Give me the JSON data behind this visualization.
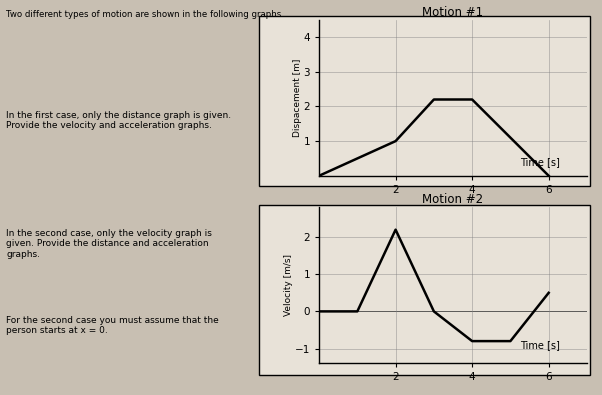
{
  "bg_color": "#c8bfb2",
  "graph_bg": "#e8e2d8",
  "header_text": "Two different types of motion are shown in the following graphs.",
  "left_text_1": "In the first case, only the distance graph is given.\nProvide the velocity and acceleration graphs.",
  "left_text_2": "In the second case, only the velocity graph is\ngiven. Provide the distance and acceleration\ngraphs.",
  "left_text_3": "For the second case you must assume that the\nperson starts at x = 0.",
  "graph1": {
    "title": "Motion #1",
    "xlabel": "Time [s]",
    "ylabel": "Dispacement [m]",
    "x": [
      0,
      2,
      3,
      4,
      6
    ],
    "y": [
      0.0,
      1.0,
      2.2,
      2.2,
      0.0
    ],
    "xlim": [
      0,
      7
    ],
    "ylim": [
      0,
      4.5
    ],
    "xticks": [
      2,
      4,
      6
    ],
    "yticks": [
      1,
      2,
      3,
      4
    ]
  },
  "graph2": {
    "title": "Motion #2",
    "xlabel": "Time [s]",
    "ylabel": "Velocity [m/s]",
    "x": [
      0,
      1,
      2,
      3,
      4,
      5,
      6
    ],
    "y": [
      0,
      0,
      2.2,
      0,
      -0.8,
      -0.8,
      0.5
    ],
    "xlim": [
      0,
      7
    ],
    "ylim": [
      -1.4,
      2.8
    ],
    "xticks": [
      2,
      4,
      6
    ],
    "yticks": [
      -1,
      0,
      1,
      2
    ]
  }
}
